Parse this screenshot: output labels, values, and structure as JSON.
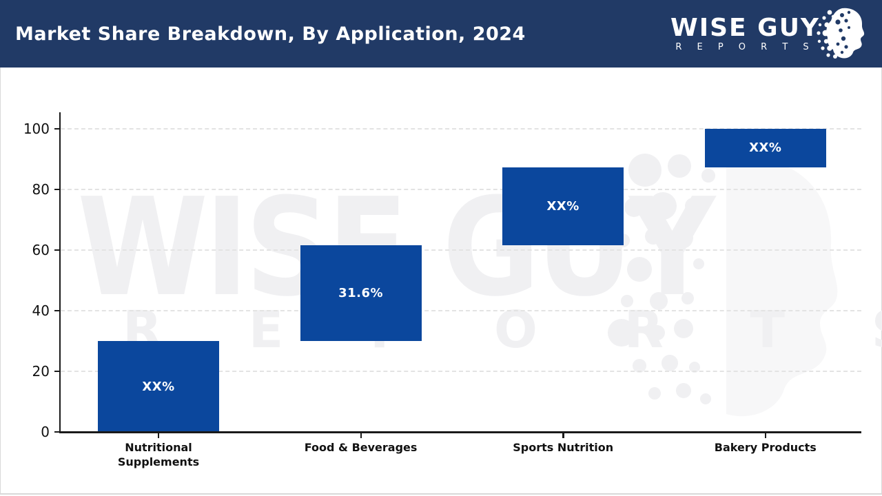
{
  "header": {
    "title": "Market Share Breakdown, By Application, 2024",
    "logo": {
      "line1": "WISE GUY",
      "line2": "R E P O R T S"
    }
  },
  "watermark": {
    "line1": "WISE GUY",
    "line2": "R E P O R T S"
  },
  "colors": {
    "header_bg": "#213A66",
    "bar": "#0B479D",
    "grid": "#e3e3e3",
    "axis": "#1a1a1a",
    "watermark": "#f0f0f2",
    "border": "#d9d9d9",
    "bar_label": "#ffffff"
  },
  "chart_data": {
    "type": "bar",
    "subtype": "waterfall",
    "title": "Market Share Breakdown, By Application, 2024",
    "categories": [
      "Nutritional Supplements",
      "Food & Beverages",
      "Sports Nutrition",
      "Bakery Products"
    ],
    "segments": [
      {
        "category": "Nutritional Supplements",
        "start": 0,
        "end": 30,
        "label": "XX%"
      },
      {
        "category": "Food & Beverages",
        "start": 30,
        "end": 61.6,
        "label": "31.6%"
      },
      {
        "category": "Sports Nutrition",
        "start": 61.6,
        "end": 87.3,
        "label": "XX%"
      },
      {
        "category": "Bakery Products",
        "start": 87.3,
        "end": 100,
        "label": "XX%"
      }
    ],
    "y_ticks": [
      0,
      20,
      40,
      60,
      80,
      100
    ],
    "ylim": [
      0,
      105
    ],
    "xlabel": "",
    "ylabel": "",
    "grid": "horizontal-dashed",
    "legend": "none",
    "bar_color": "#0B479D"
  }
}
